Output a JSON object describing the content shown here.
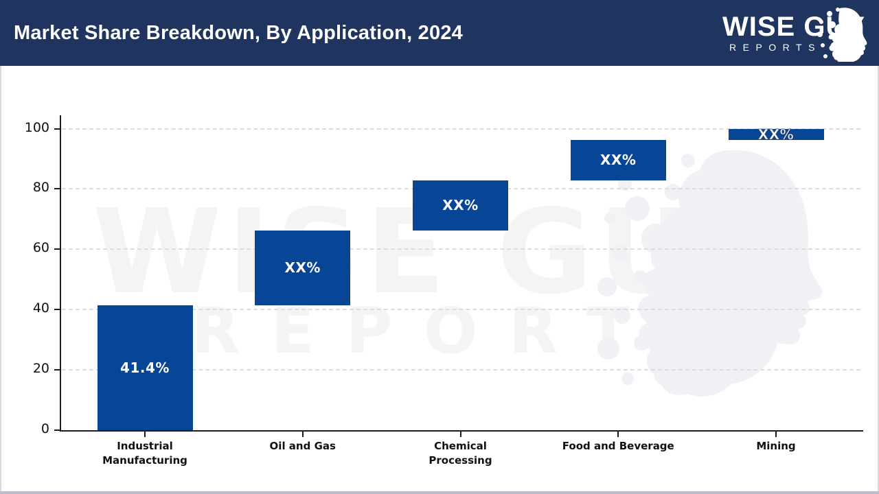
{
  "header": {
    "title": "Market Share Breakdown, By Application, 2024",
    "logo": {
      "line1": "WISE GUY",
      "line2": "REPORTS"
    }
  },
  "watermark": {
    "line1": "WISE GUY",
    "line2": "REPORTS"
  },
  "colors": {
    "header_bg": "#1f3560",
    "bar_blue": "#084596",
    "gridline": "#dcdcdc",
    "axis": "#1a1a1a",
    "label_text": "#ffffff"
  },
  "chart_data": {
    "type": "bar",
    "variant": "waterfall",
    "title": "Market Share Breakdown, By Application, 2024",
    "xlabel": "",
    "ylabel": "",
    "ylim": [
      0,
      104
    ],
    "yticks": [
      0,
      20,
      40,
      60,
      80,
      100
    ],
    "grid": "horizontal-dashed",
    "legend": "none",
    "bar_color": "#084596",
    "categories": [
      "Industrial Manufacturing",
      "Oil and Gas",
      "Chemical Processing",
      "Food and Beverage",
      "Mining"
    ],
    "categories_lines": [
      [
        "Industrial",
        "Manufacturing"
      ],
      [
        "Oil and Gas"
      ],
      [
        "Chemical",
        "Processing"
      ],
      [
        "Food and Beverage"
      ],
      [
        "Mining"
      ]
    ],
    "segments": [
      {
        "category": "Industrial Manufacturing",
        "start": 0,
        "end": 41.4,
        "value": 41.4,
        "label": "41.4%"
      },
      {
        "category": "Oil and Gas",
        "start": 41.4,
        "end": 66.3,
        "value": 24.9,
        "label": "XX%"
      },
      {
        "category": "Chemical Processing",
        "start": 66.3,
        "end": 82.9,
        "value": 16.6,
        "label": "XX%"
      },
      {
        "category": "Food and Beverage",
        "start": 82.9,
        "end": 96.3,
        "value": 13.4,
        "label": "XX%"
      },
      {
        "category": "Mining",
        "start": 96.3,
        "end": 100.0,
        "value": 3.7,
        "label": "XX%"
      }
    ]
  }
}
